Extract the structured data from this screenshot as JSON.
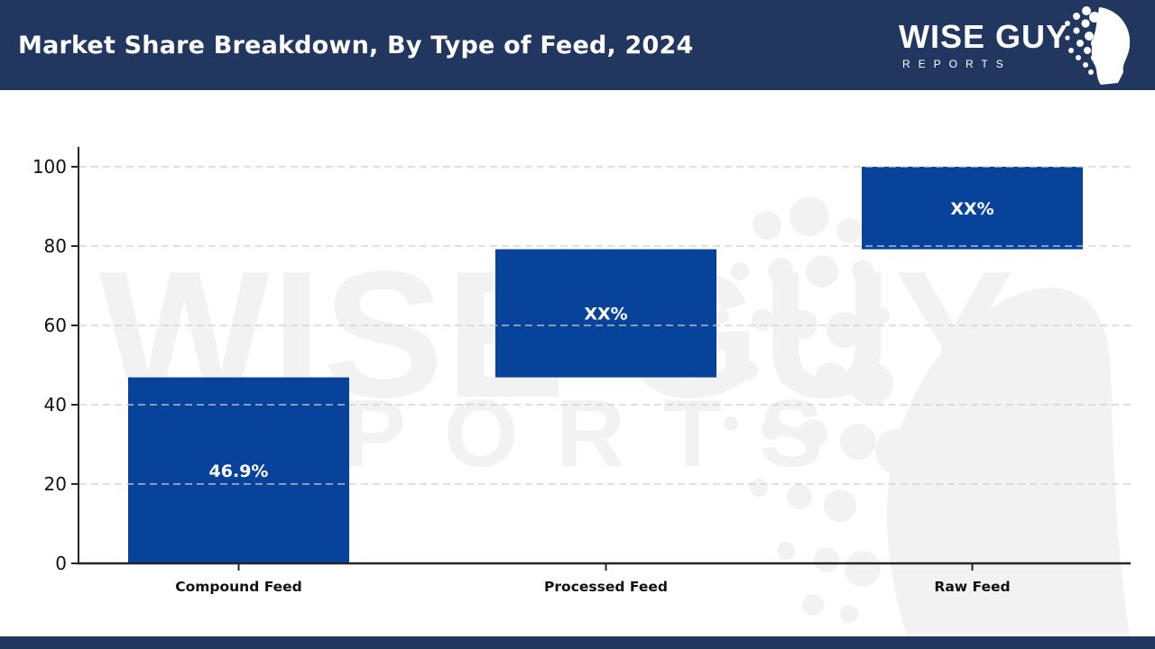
{
  "header": {
    "title": "Market Share Breakdown, By Type of Feed, 2024",
    "logo": {
      "line1": "WISE GUY",
      "line2": "REPORTS"
    }
  },
  "watermark": {
    "line1": "WISE GUY",
    "line2": "REPORTS"
  },
  "colors": {
    "header_bg": "#21375f",
    "bar": "#07439a",
    "grid": "#cfcfcf",
    "axis": "#262626",
    "bar_label": "#ffffff",
    "tick_label": "#111111",
    "watermark": "#f2f2f2"
  },
  "chart_data": {
    "type": "bar",
    "subtype": "floating-segment-waterfall",
    "title": "Market Share Breakdown, By Type of Feed, 2024",
    "categories": [
      "Compound Feed",
      "Processed Feed",
      "Raw Feed"
    ],
    "segments": [
      {
        "category": "Compound Feed",
        "from": 0,
        "to": 46.9,
        "label": "46.9%"
      },
      {
        "category": "Processed Feed",
        "from": 46.9,
        "to": 79.2,
        "label": "XX%"
      },
      {
        "category": "Raw Feed",
        "from": 79.2,
        "to": 100,
        "label": "XX%"
      }
    ],
    "yticks": [
      0,
      20,
      40,
      60,
      80,
      100
    ],
    "ylim": [
      0,
      105
    ],
    "xlabel": "",
    "ylabel": "",
    "grid": "dashed-horizontal-over-bars",
    "legend": "none"
  }
}
